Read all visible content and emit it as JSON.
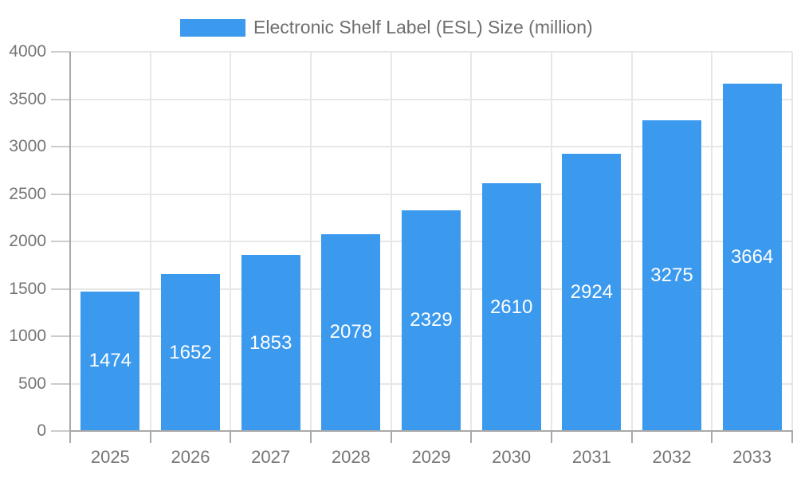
{
  "colors": {
    "bar": "#3b99ee",
    "grid": "#e7e7e7",
    "axis": "#a9a9a9",
    "tick": "#cccccc",
    "text": "#757575",
    "title": "#6e6e6e",
    "value": "#ffffff"
  },
  "legend": {
    "label": "Electronic Shelf Label (ESL) Size (million)"
  },
  "chart_data": {
    "type": "bar",
    "title": "Electronic Shelf Label (ESL) Size (million)",
    "categories": [
      "2025",
      "2026",
      "2027",
      "2028",
      "2029",
      "2030",
      "2031",
      "2032",
      "2033"
    ],
    "values": [
      1474,
      1652,
      1853,
      2078,
      2329,
      2610,
      2924,
      3275,
      3664
    ],
    "xlabel": "",
    "ylabel": "",
    "ylim": [
      0,
      4000
    ],
    "ytick_step": 500,
    "yticks": [
      0,
      500,
      1000,
      1500,
      2000,
      2500,
      3000,
      3500,
      4000
    ],
    "grid": "full",
    "legend_position": "top",
    "value_labels": "inside-center"
  }
}
